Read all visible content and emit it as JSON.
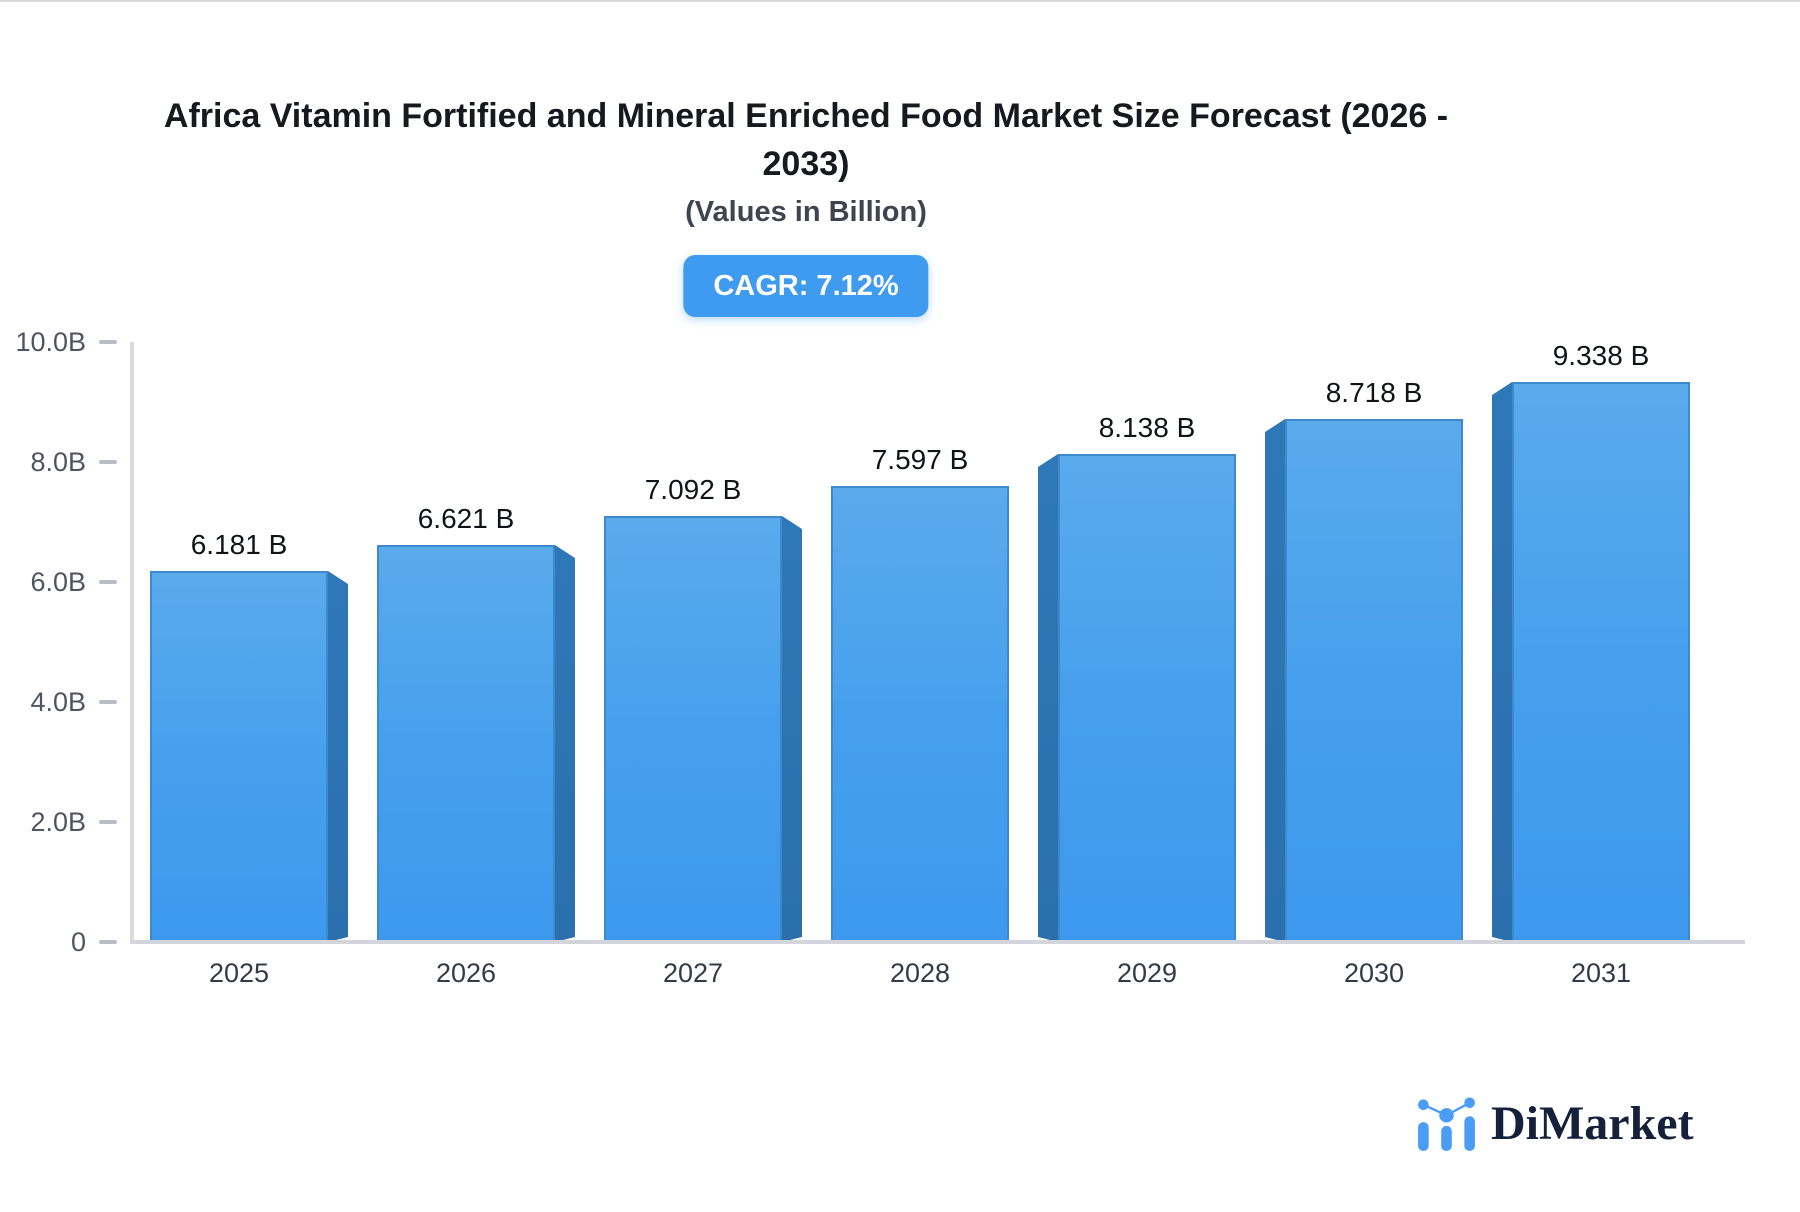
{
  "header": {
    "title": "Africa Vitamin Fortified and Mineral Enriched Food Market Size Forecast (2026 - 2033)",
    "title_lines": [
      "Africa Vitamin Fortified and Mineral Enriched Food Market Size Forecast (2026 -",
      "2033)"
    ],
    "subtitle": "(Values in Billion)",
    "cagr_label": "CAGR: 7.12%"
  },
  "footer": {
    "brand_name": "DiMarket",
    "brand_icon": "bar-line-chart-icon"
  },
  "colors": {
    "bar_face_top": "#5AAAEC",
    "bar_face_bottom": "#3D99EE",
    "bar_side": "#2D74B3",
    "bar_border": "#3D89CB",
    "badge_bg": "#3E9BF0",
    "badge_text": "#FFFFFF",
    "axis_line": "#D5D8DE",
    "tick_dash": "#B7BCC6",
    "ytick_text": "#4D5662",
    "xtick_text": "#333B47",
    "value_text": "#101419",
    "title_text": "#16191E",
    "subtitle_text": "#3E454E",
    "brand_text": "#15213A",
    "brand_icon_color": "#4A9DF3"
  },
  "chart_data": {
    "type": "bar",
    "style": "3d-vertical-bars",
    "title": "Africa Vitamin Fortified and Mineral Enriched Food Market Size Forecast (2026 - 2033)",
    "subtitle": "(Values in Billion)",
    "annotation": "CAGR: 7.12%",
    "categories": [
      "2025",
      "2026",
      "2027",
      "2028",
      "2029",
      "2030",
      "2031"
    ],
    "values": [
      6.181,
      6.621,
      7.092,
      7.597,
      8.138,
      8.718,
      9.338
    ],
    "value_labels": [
      "6.181 B",
      "6.621 B",
      "7.092 B",
      "7.597 B",
      "8.138 B",
      "8.718 B",
      "9.338 B"
    ],
    "unit": "Billion",
    "xlabel": "",
    "ylabel": "",
    "ylim": [
      0,
      10
    ],
    "yticks": {
      "values": [
        10,
        8,
        6,
        4,
        2,
        0
      ],
      "labels": [
        "10.0B",
        "8.0B",
        "6.0B",
        "4.0B",
        "2.0B",
        "0"
      ]
    },
    "grid": false,
    "legend": "none"
  }
}
